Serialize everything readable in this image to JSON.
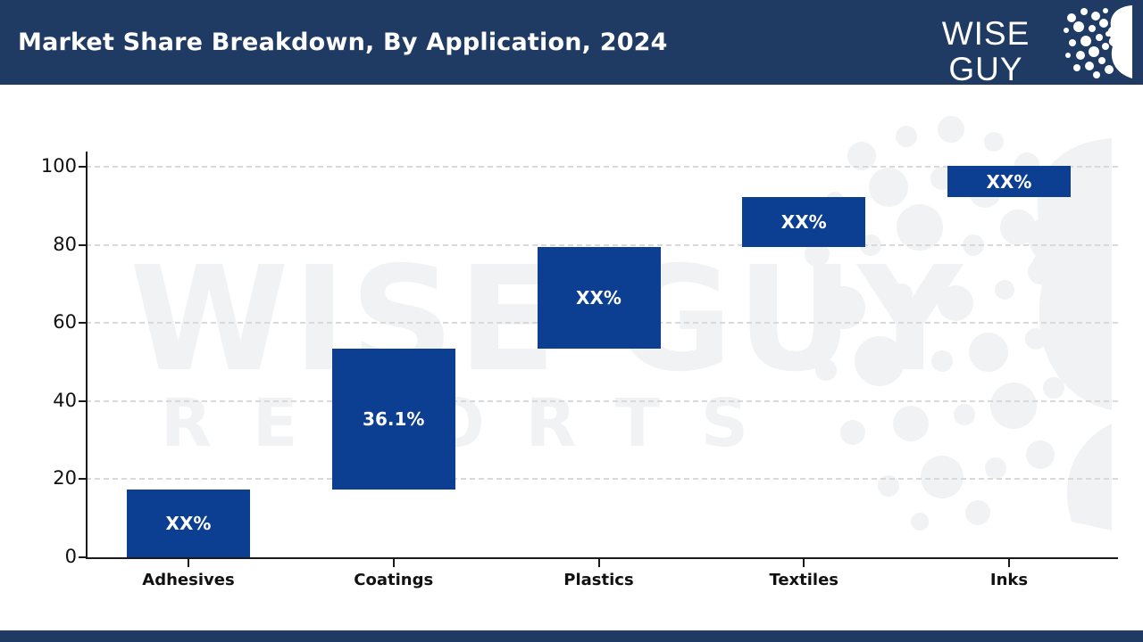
{
  "header": {
    "title": "Market Share Breakdown, By Application, 2024",
    "logo": {
      "line1": "WISE GUY",
      "line2": "R E P O R T S"
    }
  },
  "watermark": {
    "line1": "WISE GUY",
    "line2": "REPORTS"
  },
  "chart_data": {
    "type": "bar",
    "subtype": "waterfall",
    "title": "Market Share Breakdown, By Application, 2024",
    "categories": [
      "Adhesives",
      "Coatings",
      "Plastics",
      "Textiles",
      "Inks"
    ],
    "segments": [
      {
        "category": "Adhesives",
        "start": 0,
        "end": 17.4,
        "label": "XX%"
      },
      {
        "category": "Coatings",
        "start": 17.4,
        "end": 53.5,
        "label": "36.1%"
      },
      {
        "category": "Plastics",
        "start": 53.5,
        "end": 79.5,
        "label": "XX%"
      },
      {
        "category": "Textiles",
        "start": 79.5,
        "end": 92.2,
        "label": "XX%"
      },
      {
        "category": "Inks",
        "start": 92.2,
        "end": 100.2,
        "label": "XX%"
      }
    ],
    "known_values": {
      "Coatings": 36.1
    },
    "y_ticks": [
      0,
      20,
      40,
      60,
      80,
      100
    ],
    "ylim": [
      0,
      104
    ],
    "grid": "dashed horizontal",
    "legend": "none",
    "bar_color": "#0c3e91",
    "bar_label_color": "#ffffff"
  },
  "colors": {
    "header_bg": "#1f3a63",
    "footer_bg": "#1f3a63",
    "bar": "#0c3e91",
    "gridline": "#d9d9d9",
    "axis": "#1a1a1a",
    "watermark": "#f1f2f4",
    "title_text": "#ffffff"
  }
}
